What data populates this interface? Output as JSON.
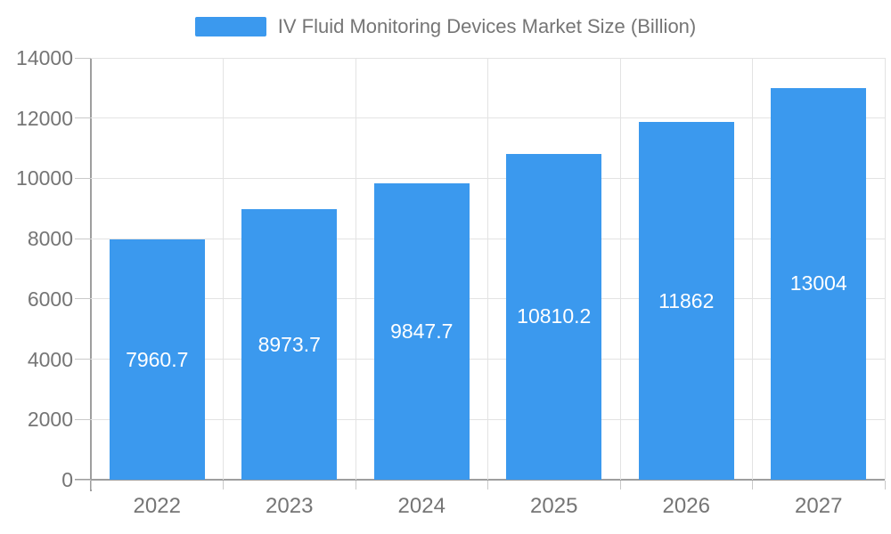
{
  "chart_data": {
    "type": "bar",
    "title": "IV Fluid Monitoring Devices Market Size (Billion)",
    "categories": [
      "2022",
      "2023",
      "2024",
      "2025",
      "2026",
      "2027"
    ],
    "values": [
      7960.7,
      8973.7,
      9847.7,
      10810.2,
      11862,
      13004
    ],
    "value_labels": [
      "7960.7",
      "8973.7",
      "9847.7",
      "10810.2",
      "11862",
      "13004"
    ],
    "xlabel": "",
    "ylabel": "",
    "ylim": [
      0,
      14000
    ],
    "yticks": [
      0,
      2000,
      4000,
      6000,
      8000,
      10000,
      12000,
      14000
    ],
    "grid": true,
    "bar_label_position": "inside-center",
    "legend": {
      "label": "IV Fluid Monitoring Devices Market Size (Billion)",
      "position": "top-center"
    },
    "colors": {
      "bar": "#3B99EE",
      "bar_label": "#FFFFFF",
      "grid": "#E3E3E3",
      "tick": "#C9C9C9",
      "axis": "#9E9E9E",
      "text": "#757575",
      "background": "#FFFFFF"
    }
  }
}
